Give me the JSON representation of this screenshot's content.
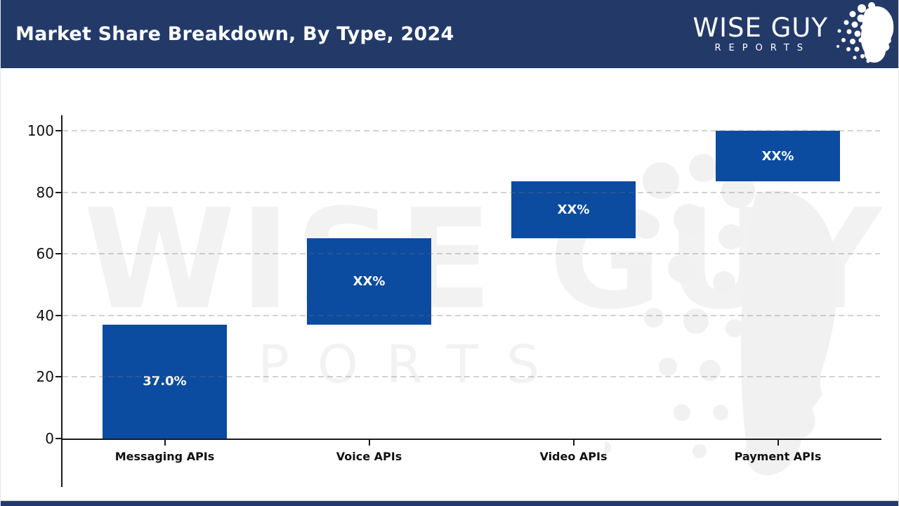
{
  "header": {
    "title": "Market Share Breakdown, By Type, 2024",
    "brand_line1": "WISE GUY",
    "brand_line2": "REPORTS"
  },
  "watermark": {
    "line1": "WISE GUY",
    "line2": "REPORTS"
  },
  "colors": {
    "header_bg": "#233A69",
    "footer_bg": "#233A69",
    "bar": "#0B4BA0",
    "axis": "#1a1a1a",
    "watermark": "#f2f2f2"
  },
  "chart_data": {
    "type": "bar",
    "subtype": "waterfall-floating-bars",
    "title": "Market Share Breakdown, By Type, 2024",
    "categories": [
      "Messaging APIs",
      "Voice APIs",
      "Video APIs",
      "Payment APIs"
    ],
    "bars": [
      {
        "category": "Messaging APIs",
        "start": 0,
        "end": 37,
        "value_label": "37.0%"
      },
      {
        "category": "Voice APIs",
        "start": 37,
        "end": 65,
        "value_label": "XX%"
      },
      {
        "category": "Video APIs",
        "start": 65,
        "end": 83.5,
        "value_label": "XX%"
      },
      {
        "category": "Payment APIs",
        "start": 83.5,
        "end": 100,
        "value_label": "XX%"
      }
    ],
    "xlabel": "",
    "ylabel": "",
    "ylim": [
      0,
      100
    ],
    "yticks": [
      0,
      20,
      40,
      60,
      80,
      100
    ],
    "grid": "horizontal-dashed-over-bars",
    "legend": false
  }
}
